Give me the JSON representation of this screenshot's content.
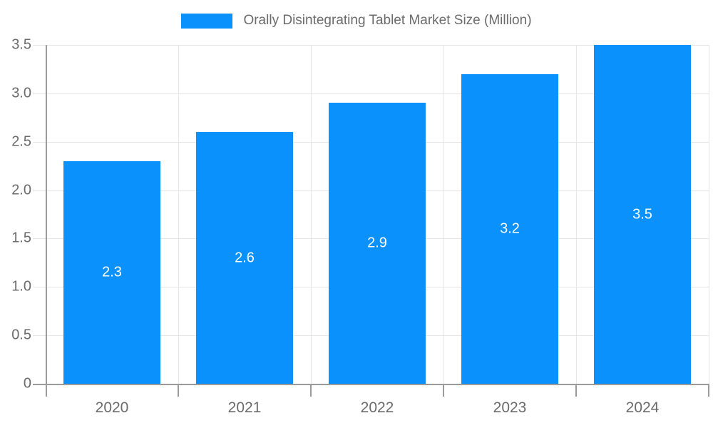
{
  "chart_data": {
    "type": "bar",
    "title": "Orally Disintegrating Tablet Market Size (Million)",
    "legend": [
      "Orally Disintegrating Tablet Market Size (Million)"
    ],
    "legend_position": "top",
    "categories": [
      "2020",
      "2021",
      "2022",
      "2023",
      "2024"
    ],
    "values": [
      2.3,
      2.6,
      2.9,
      3.2,
      3.5
    ],
    "value_labels": [
      "2.3",
      "2.6",
      "2.9",
      "3.2",
      "3.5"
    ],
    "xlabel": "",
    "ylabel": "",
    "ylim": [
      0,
      3.5
    ],
    "ytick_labels": [
      "0",
      "0.5",
      "1.0",
      "1.5",
      "2.0",
      "2.5",
      "3.0",
      "3.5"
    ],
    "grid": true,
    "colors": {
      "bar": "#0a91fc",
      "grid": "#e6e6e6",
      "axis": "#9b9b9b",
      "text": "#6b6b6b",
      "value_text": "#ffffff",
      "background": "#ffffff"
    }
  }
}
